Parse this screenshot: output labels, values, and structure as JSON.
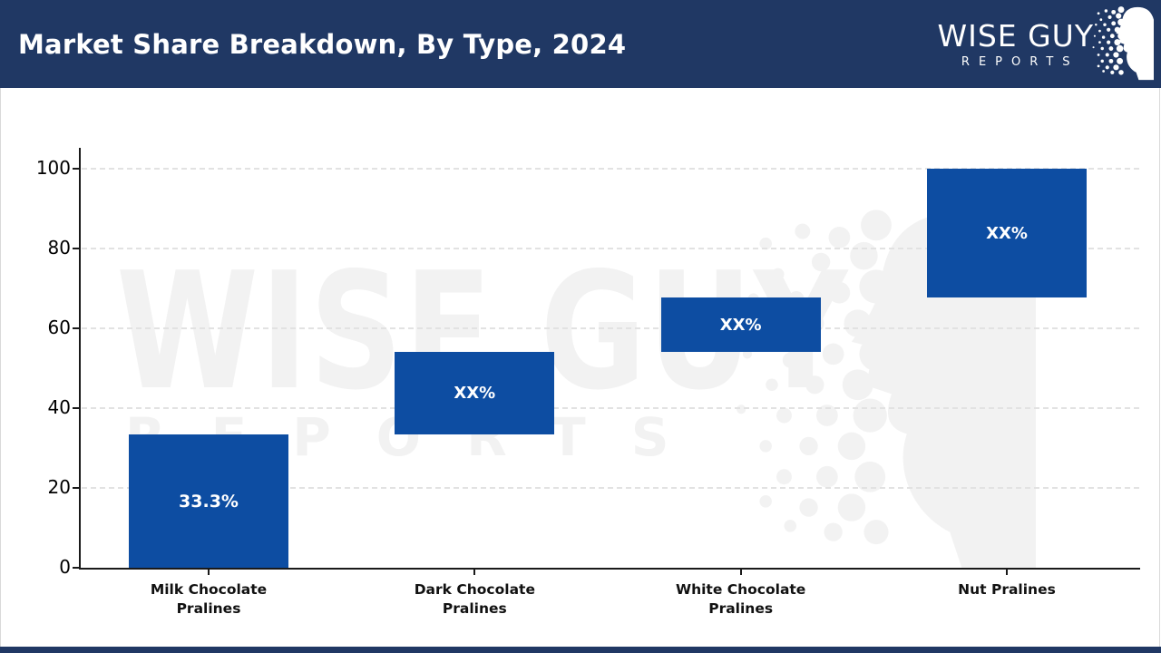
{
  "header": {
    "title": "Market Share Breakdown, By Type, 2024",
    "logo": {
      "line1": "WISE GUY",
      "line2": "REPORTS"
    }
  },
  "watermark": {
    "line1": "WISE GUY",
    "line2": "REPORTS"
  },
  "colors": {
    "header_bg": "#203864",
    "footer_bg": "#203864",
    "bar": "#0d4da2",
    "bar_label": "#ffffff",
    "grid": "#e2e2e2",
    "axis": "#1a1a1a",
    "watermark": "#f2f2f2"
  },
  "chart_data": {
    "type": "bar",
    "subtype": "waterfall-floating-bars",
    "title": "Market Share Breakdown, By Type, 2024",
    "categories": [
      "Milk Chocolate\nPralines",
      "Dark Chocolate\nPralines",
      "White Chocolate\nPralines",
      "Nut Pralines"
    ],
    "segments": [
      {
        "category": "Milk Chocolate Pralines",
        "start": 0,
        "end": 33.3,
        "label": "33.3%"
      },
      {
        "category": "Dark Chocolate Pralines",
        "start": 33.3,
        "end": 54,
        "label": "XX%"
      },
      {
        "category": "White Chocolate Pralines",
        "start": 54,
        "end": 67.7,
        "label": "XX%"
      },
      {
        "category": "Nut Pralines",
        "start": 67.7,
        "end": 100,
        "label": "XX%"
      }
    ],
    "xlabel": "",
    "ylabel": "",
    "ylim": [
      0,
      105
    ],
    "yticks": [
      0,
      20,
      40,
      60,
      80,
      100
    ],
    "grid": "horizontal-dashed",
    "legend": "none"
  }
}
